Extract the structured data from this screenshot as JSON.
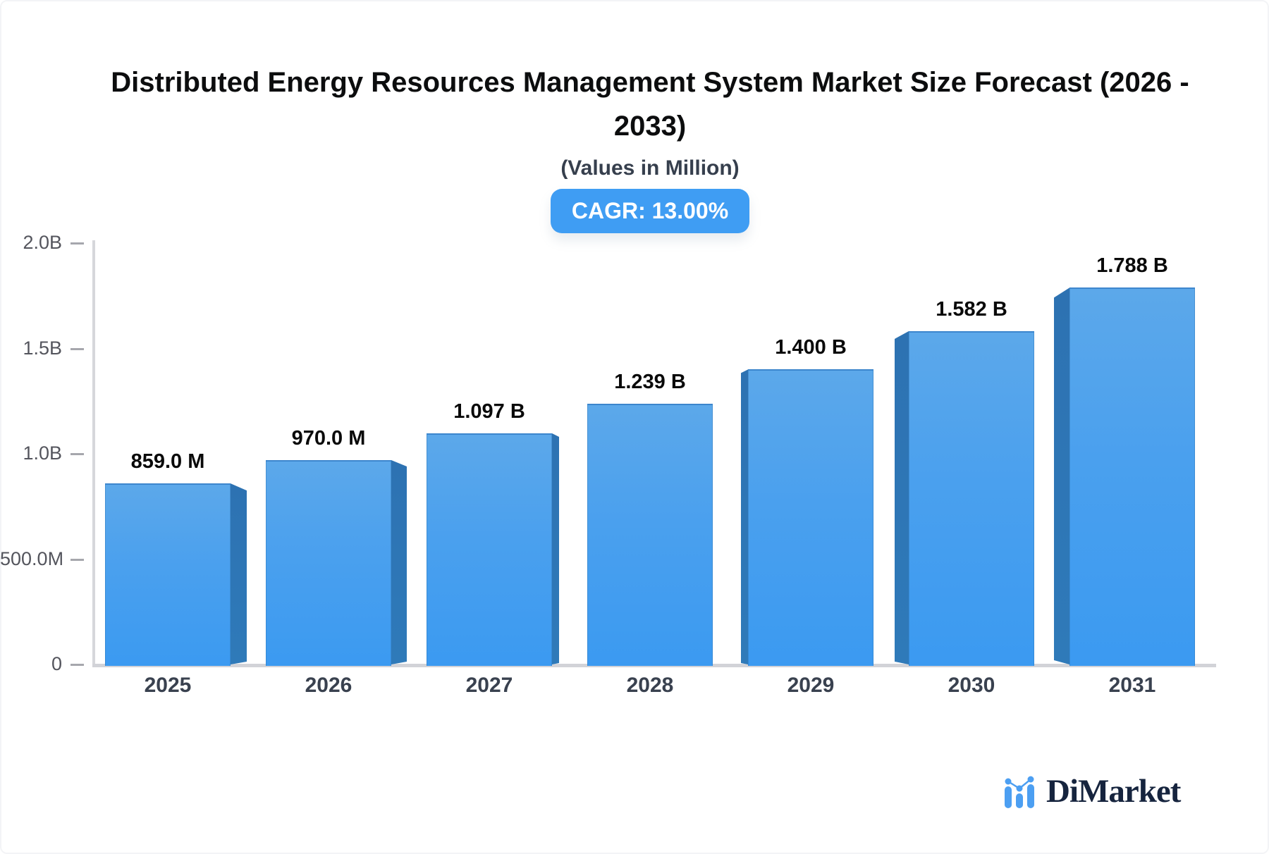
{
  "header": {
    "title_line1": "Distributed Energy Resources Management System Market Size Forecast (2026 -",
    "title_line2": "2033)",
    "subtitle": "(Values in Million)",
    "cagr_badge": "CAGR: 13.00%"
  },
  "chart_data": {
    "type": "bar",
    "title": "Distributed Energy Resources Management System Market Size Forecast (2026 - 2033)",
    "subtitle": "(Values in Million)",
    "cagr_percent": 13.0,
    "unit": "Million",
    "categories": [
      "2025",
      "2026",
      "2027",
      "2028",
      "2029",
      "2030",
      "2031"
    ],
    "values": [
      859.0,
      970.0,
      1097,
      1239,
      1400,
      1582,
      1788
    ],
    "value_labels": [
      "859.0 M",
      "970.0 M",
      "1.097 B",
      "1.239 B",
      "1.400 B",
      "1.582 B",
      "1.788 B"
    ],
    "ylim": [
      0,
      2000
    ],
    "yticks": [
      {
        "label": "2.0B",
        "value": 2000
      },
      {
        "label": "1.5B",
        "value": 1500
      },
      {
        "label": "1.0B",
        "value": 1000
      },
      {
        "label": "500.0M",
        "value": 500
      },
      {
        "label": "0",
        "value": 0
      }
    ],
    "grid": false,
    "legend": false,
    "colors": {
      "bar_top": "#5ca8ea",
      "bar_bottom": "#3b9af1",
      "bar_side": "#2e75b5",
      "badge": "#3f9df3",
      "axis": "#d6d7db"
    }
  },
  "branding": {
    "logo_text": "DiMarket",
    "logo_icon": "mini-bar-chart-icon"
  }
}
